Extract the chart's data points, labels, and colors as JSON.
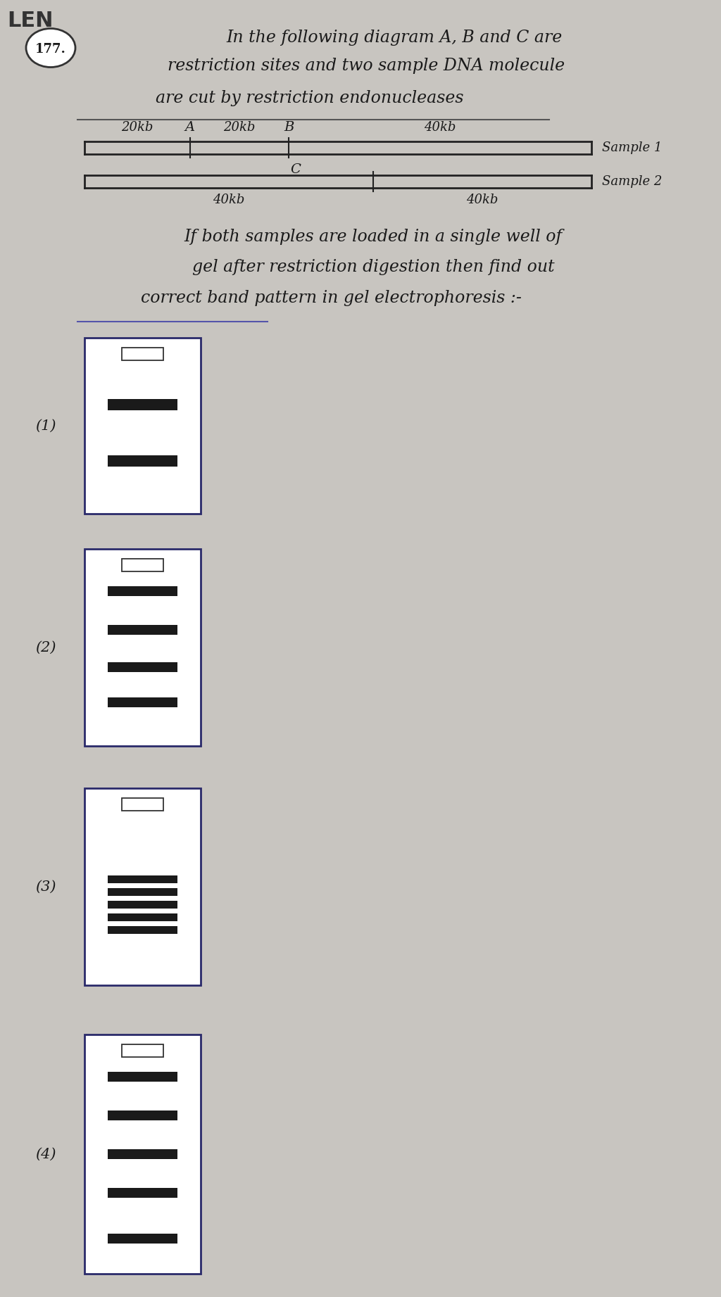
{
  "bg_color": "#c8c5c0",
  "text_color": "#1a1a1a",
  "title_line1": "In the following diagram A, B and C are",
  "title_line2": "restriction sites and two sample DNA molecule",
  "title_line3": "are cut by restriction endonucleases",
  "question_num": "177.",
  "sample1_label": "Sample 1",
  "sample2_label": "Sample 2",
  "body_text_line1": "If both samples are loaded in a single well of",
  "body_text_line2": "gel after restriction digestion then find out",
  "body_text_line3": "correct band pattern in gel electrophoresis :-",
  "option_labels": [
    "(1)",
    "(2)",
    "(3)",
    "(4)"
  ],
  "box_edge_color": "#2a2a6a",
  "band_color": "#1a1a1a",
  "well_edge_color": "#333333"
}
